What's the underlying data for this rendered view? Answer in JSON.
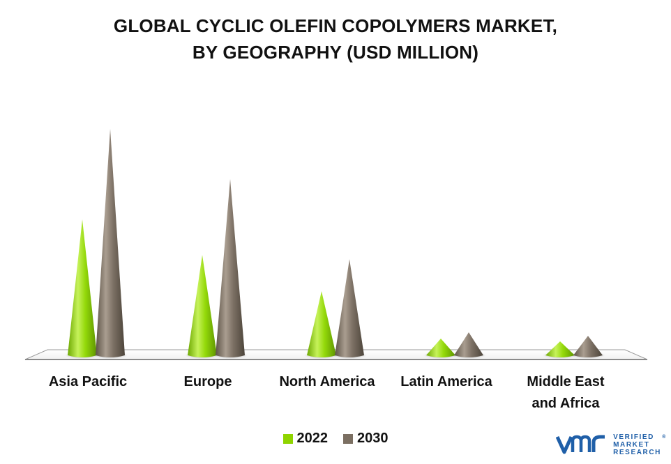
{
  "title_line1": "GLOBAL CYCLIC OLEFIN COPOLYMERS MARKET,",
  "title_line2": "BY GEOGRAPHY (USD MILLION)",
  "colors": {
    "2022": "#8fd400",
    "2030": "#7b6f62"
  },
  "logo": {
    "mark": "vmr",
    "line1": "VERIFIED",
    "line2": "MARKET",
    "line3": "RESEARCH",
    "registered": "®"
  },
  "chart_data": {
    "type": "bar",
    "style": "cone",
    "categories": [
      "Asia Pacific",
      "Europe",
      "North America",
      "Latin America",
      "Middle East and Africa"
    ],
    "category_lines": [
      [
        "Asia Pacific"
      ],
      [
        "Europe"
      ],
      [
        "North America"
      ],
      [
        "Latin America"
      ],
      [
        "Middle East",
        "and Africa"
      ]
    ],
    "series": [
      {
        "name": "2022",
        "values": [
          195,
          144,
          92,
          24,
          20
        ]
      },
      {
        "name": "2030",
        "values": [
          325,
          253,
          138,
          33,
          28
        ]
      }
    ],
    "ylim": [
      0,
      340
    ],
    "grid": false,
    "legend": "bottom-center"
  }
}
